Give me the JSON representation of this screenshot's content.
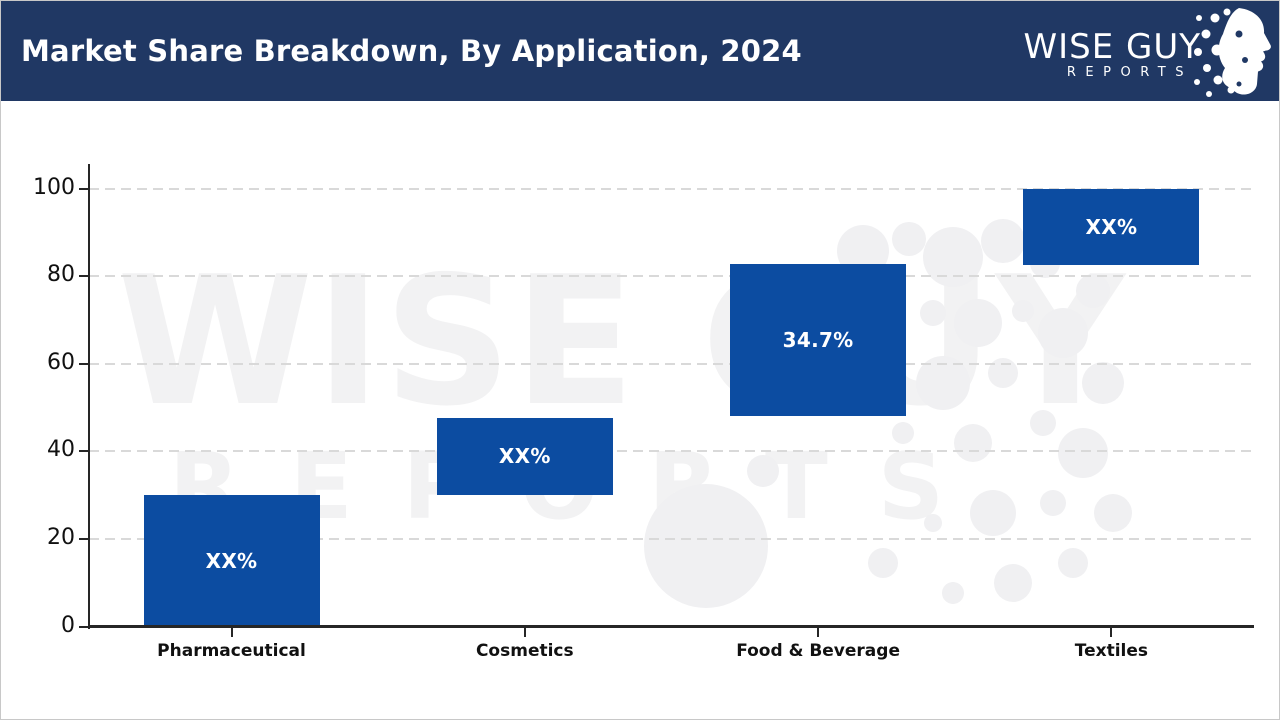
{
  "header": {
    "title": "Market Share Breakdown, By Application, 2024",
    "logo": {
      "line1": "WISE GUY",
      "line2": "REPORTS"
    }
  },
  "watermark": {
    "line1": "WISE GUY",
    "line2": "REPORTS"
  },
  "chart_data": {
    "type": "bar",
    "subtype": "floating-waterfall",
    "title": "Market Share Breakdown, By Application, 2024",
    "categories": [
      "Pharmaceutical",
      "Cosmetics",
      "Food & Beverage",
      "Textiles"
    ],
    "bars": [
      {
        "category": "Pharmaceutical",
        "start": 0,
        "end": 30,
        "label": "XX%"
      },
      {
        "category": "Cosmetics",
        "start": 30,
        "end": 47.7,
        "label": "XX%"
      },
      {
        "category": "Food & Beverage",
        "start": 48,
        "end": 82.7,
        "label": "34.7%"
      },
      {
        "category": "Textiles",
        "start": 82.5,
        "end": 100,
        "label": "XX%"
      }
    ],
    "yticks": [
      0,
      20,
      40,
      60,
      80,
      100
    ],
    "ylim": [
      0,
      105
    ],
    "xlabel": "",
    "ylabel": "",
    "grid": "horizontal-dashed",
    "legend": "none"
  },
  "colors": {
    "header_bg": "#203864",
    "bar": "#0c4ca1",
    "grid": "#d9d9d9",
    "axis": "#262626",
    "watermark": "#f2f2f3",
    "title_text": "#ffffff"
  }
}
